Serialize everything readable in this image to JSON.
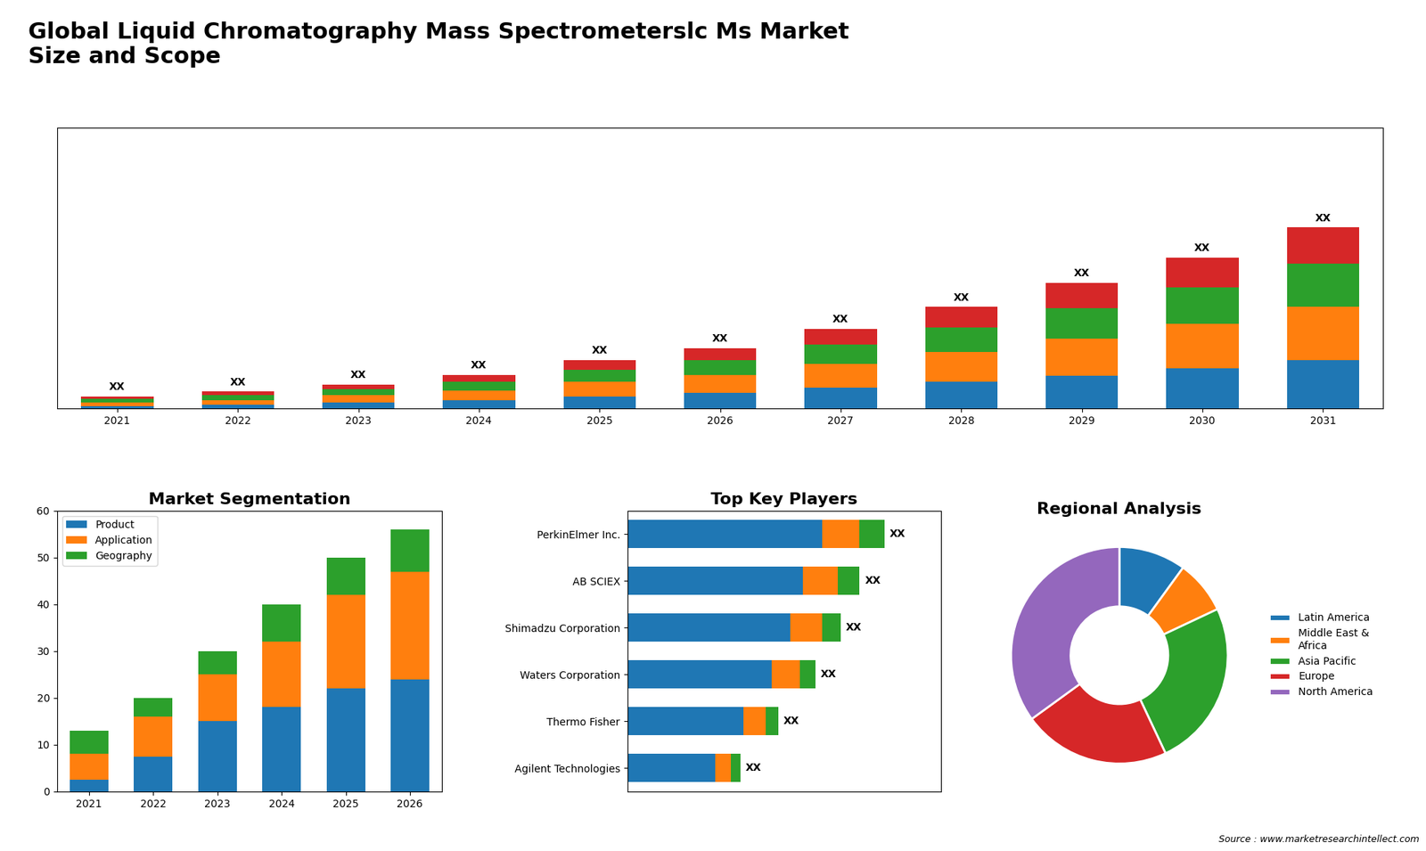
{
  "title": "Global Liquid Chromatography Mass Spectrometerslc Ms Market\nSize and Scope",
  "annotations": [
    "Source : www.marketresearchintellect.com"
  ],
  "chart_data": [
    {
      "type": "bar",
      "stacked": true,
      "tick_labels": "x",
      "categories": [
        "2021",
        "2022",
        "2023",
        "2024",
        "2025",
        "2026",
        "2027",
        "2028",
        "2029",
        "2030",
        "2031"
      ],
      "series": [
        {
          "values": [
            2,
            3,
            5,
            7,
            10,
            13,
            17,
            22,
            27,
            33,
            40
          ]
        },
        {
          "values": [
            3,
            4,
            6,
            8,
            12,
            15,
            20,
            25,
            31,
            37,
            44
          ]
        },
        {
          "values": [
            3,
            4,
            5,
            7,
            10,
            12,
            16,
            20,
            25,
            30,
            36
          ]
        },
        {
          "values": [
            2,
            3,
            4,
            6,
            8,
            10,
            13,
            17,
            21,
            25,
            30
          ]
        }
      ],
      "total_labels": [
        "XX",
        "XX",
        "XX",
        "XX",
        "XX",
        "XX",
        "XX",
        "XX",
        "XX",
        "XX",
        "XX"
      ],
      "ylim": [
        0,
        232.5
      ]
    },
    {
      "type": "bar",
      "stacked": true,
      "title": "Market Segmentation",
      "categories": [
        "2021",
        "2022",
        "2023",
        "2024",
        "2025",
        "2026"
      ],
      "series": [
        {
          "name": "Product",
          "values": [
            2.5,
            7.5,
            15.0,
            18.0,
            22.0,
            24.0
          ]
        },
        {
          "name": "Application",
          "values": [
            5.5,
            8.5,
            10.0,
            14.0,
            20.0,
            23.0
          ]
        },
        {
          "name": "Geography",
          "values": [
            5.0,
            4.0,
            5.0,
            8.0,
            8.0,
            9.0
          ]
        }
      ],
      "ylim": [
        0,
        60
      ],
      "yticks": [
        0,
        10,
        20,
        30,
        40,
        50,
        60
      ],
      "legend": "upper left"
    },
    {
      "type": "bar",
      "stacked": true,
      "orientation": "horizontal",
      "tick_labels": "y",
      "title": "Top Key Players",
      "categories": [
        "PerkinElmer Inc.",
        "AB SCIEX",
        "Shimadzu Corporation",
        "Waters Corporation",
        "Thermo Fisher",
        "Agilent Technologies"
      ],
      "series": [
        {
          "values": [
            62,
            56,
            52,
            46,
            37,
            28
          ]
        },
        {
          "values": [
            12,
            11,
            10,
            9,
            7,
            5
          ]
        },
        {
          "values": [
            8,
            7,
            6,
            5,
            4,
            3
          ]
        }
      ],
      "total_labels": [
        "XX",
        "XX",
        "XX",
        "XX",
        "XX",
        "XX"
      ],
      "xlim": [
        0,
        100
      ]
    },
    {
      "type": "donut",
      "title": "Regional Analysis",
      "categories": [
        "Latin America",
        "Middle East &\nAfrica",
        "Asia Pacific",
        "Europe",
        "North America"
      ],
      "values": [
        10,
        8,
        25,
        22,
        35
      ],
      "legend": "center left"
    }
  ]
}
